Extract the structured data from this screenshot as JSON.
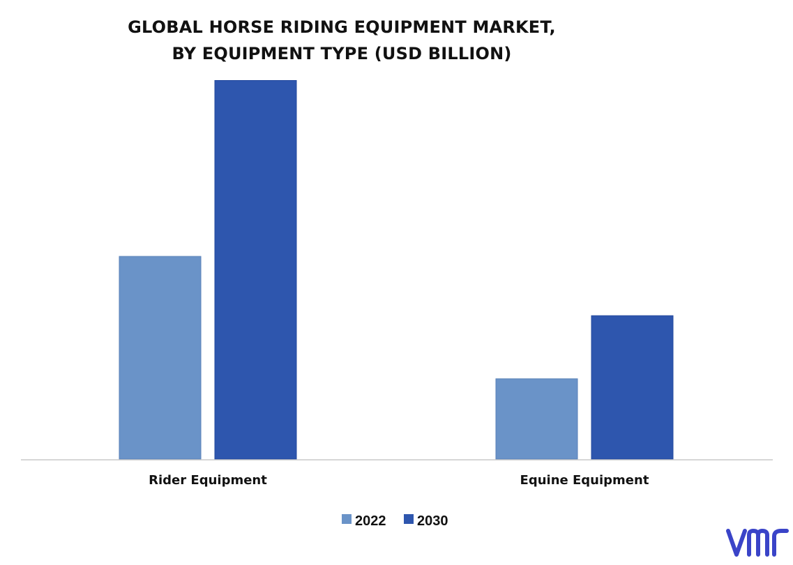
{
  "title": {
    "line1": "GLOBAL HORSE RIDING EQUIPMENT MARKET,",
    "line2": "BY EQUIPMENT TYPE (USD BILLION)"
  },
  "logo": {
    "text": "vmr",
    "color": "#3a44c8"
  },
  "chart_data": {
    "type": "bar",
    "title": "GLOBAL HORSE RIDING EQUIPMENT MARKET, BY EQUIPMENT TYPE (USD BILLION)",
    "categories": [
      "Rider Equipment",
      "Equine Equipment"
    ],
    "series": [
      {
        "name": "2022",
        "values": [
          5.3,
          2.1
        ],
        "color": "#6a93c8"
      },
      {
        "name": "2030",
        "values": [
          9.9,
          3.75
        ],
        "color": "#2e56ae"
      }
    ],
    "xlabel": "",
    "ylabel": "",
    "ylim": [
      0,
      10
    ],
    "grid": false,
    "legend": "bottom-center"
  }
}
